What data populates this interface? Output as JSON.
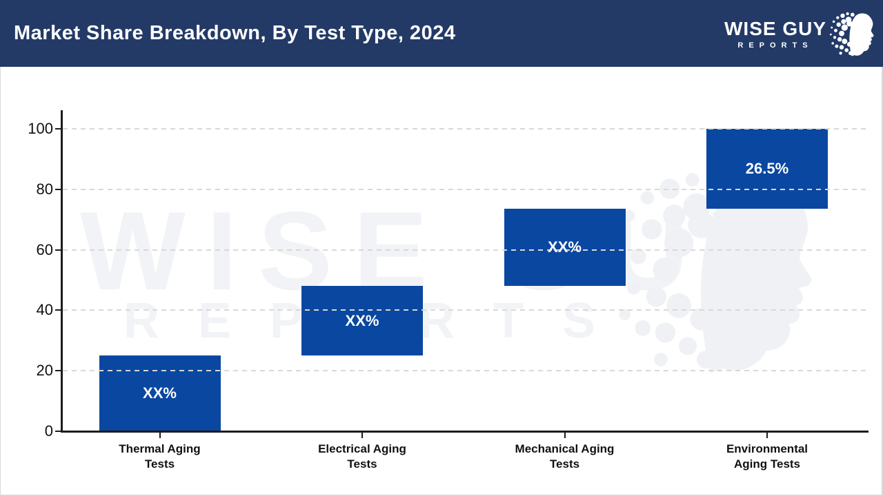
{
  "header": {
    "title": "Market Share Breakdown, By Test Type, 2024",
    "logo": {
      "line1": "WISE GUY",
      "line2": "REPORTS"
    }
  },
  "watermark": {
    "line1": "WISE GUY",
    "line2": "REPORTS"
  },
  "chart_data": {
    "type": "bar",
    "subtype": "waterfall",
    "title": "Market Share Breakdown, By Test Type, 2024",
    "categories": [
      "Thermal Aging Tests",
      "Electrical Aging Tests",
      "Mechanical Aging Tests",
      "Environmental Aging Tests"
    ],
    "bars": [
      {
        "category": "Thermal Aging Tests",
        "label_lines": [
          "Thermal Aging",
          "Tests"
        ],
        "base": 0,
        "top": 25,
        "segment_size": 25,
        "value_label": "XX%"
      },
      {
        "category": "Electrical Aging Tests",
        "label_lines": [
          "Electrical Aging",
          "Tests"
        ],
        "base": 25,
        "top": 48,
        "segment_size": 23,
        "value_label": "XX%"
      },
      {
        "category": "Mechanical Aging Tests",
        "label_lines": [
          "Mechanical Aging",
          "Tests"
        ],
        "base": 48,
        "top": 73.5,
        "segment_size": 25.5,
        "value_label": "XX%"
      },
      {
        "category": "Environmental Aging Tests",
        "label_lines": [
          "Environmental",
          "Aging Tests"
        ],
        "base": 73.5,
        "top": 100,
        "segment_size": 26.5,
        "value_label": "26.5%"
      }
    ],
    "yticks": [
      0,
      20,
      40,
      60,
      80,
      100
    ],
    "ylim": [
      0,
      105
    ],
    "xlabel": "",
    "ylabel": "",
    "grid": "horizontal-dashed",
    "legend": "none",
    "bar_color": "#0a47a0",
    "axis_color": "#1c1c1c",
    "gridline_color": "#d8d8d8",
    "header_bg_color": "#233a67",
    "value_label_color": "#ffffff"
  }
}
